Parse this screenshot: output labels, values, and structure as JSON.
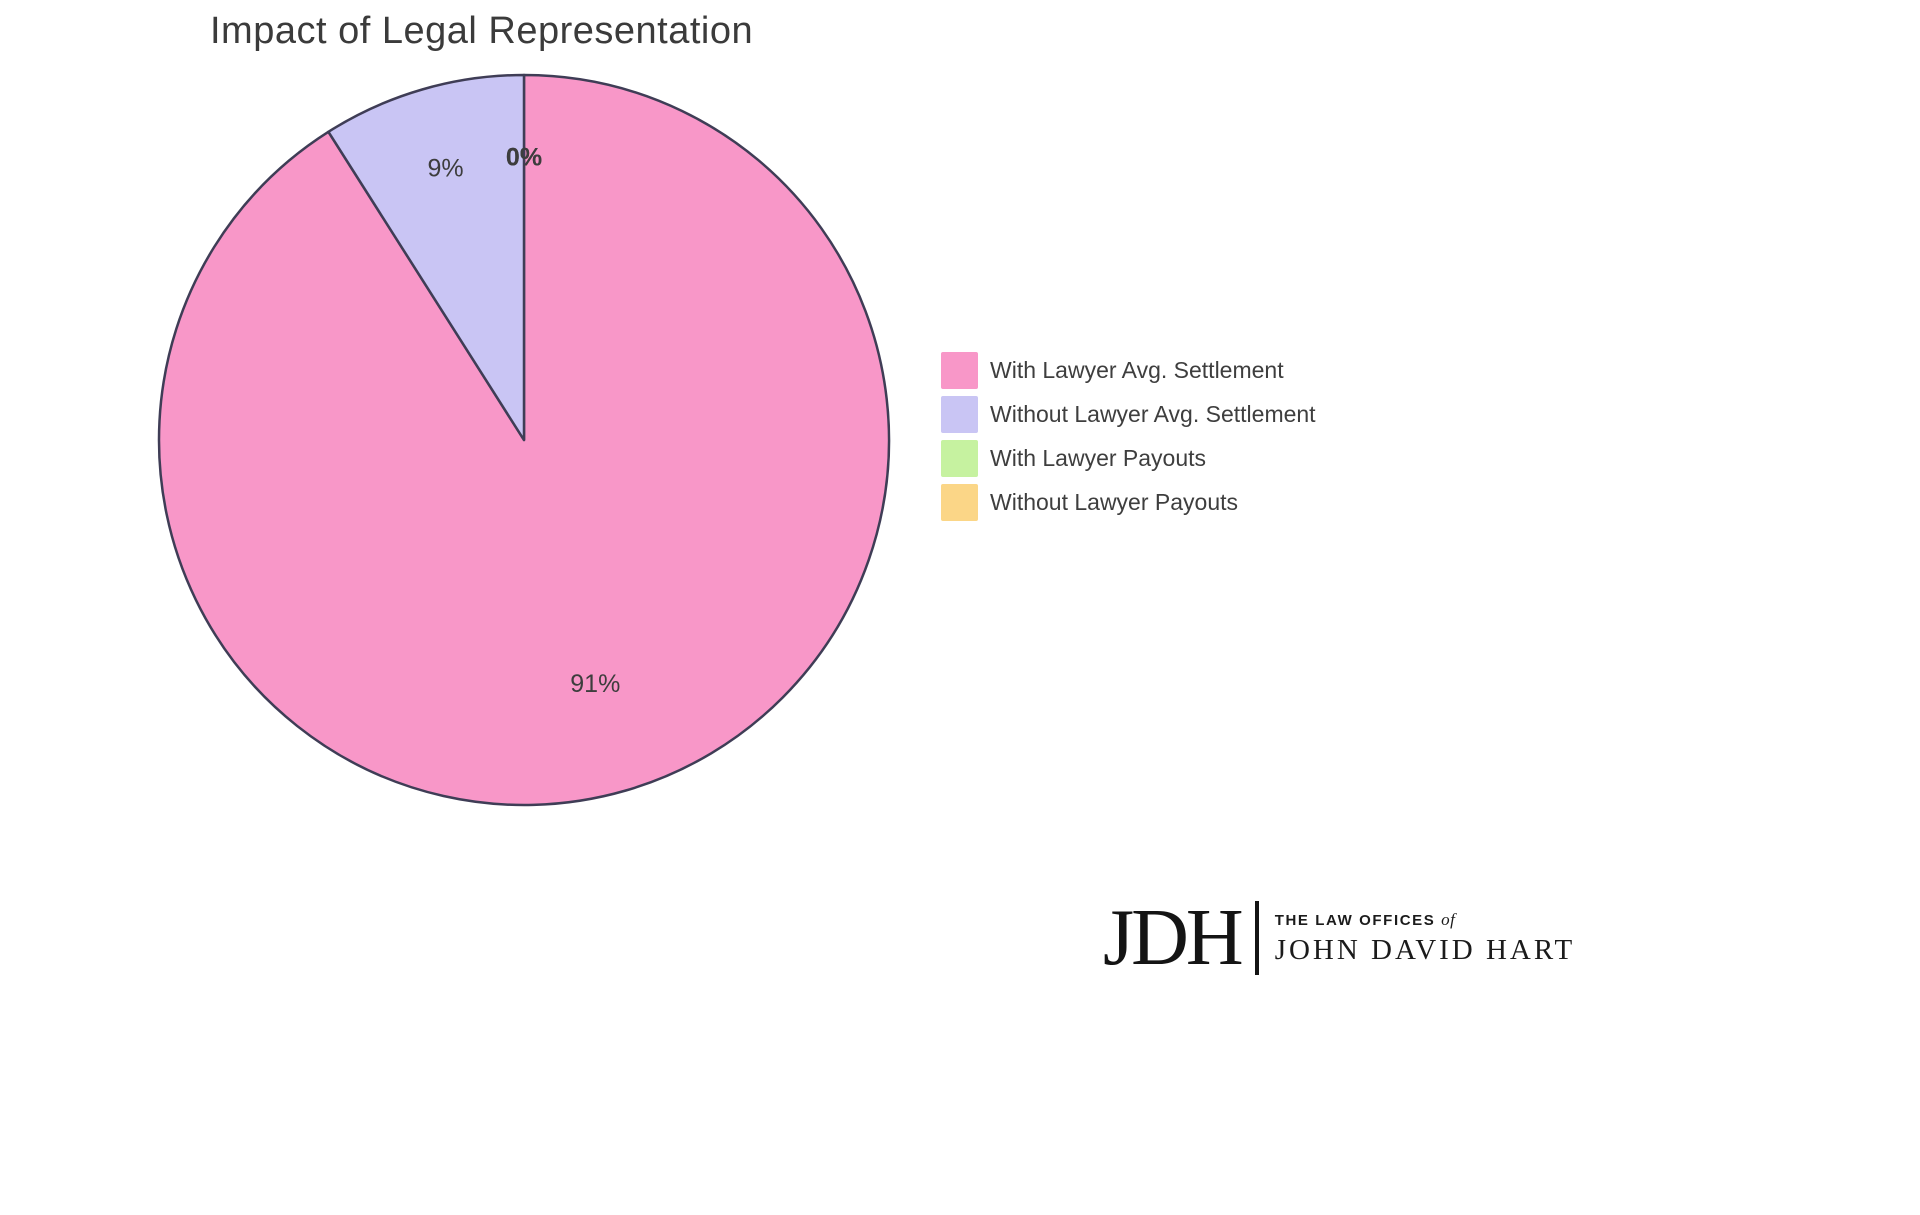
{
  "chart_data": {
    "type": "pie",
    "title": "Impact of Legal Representation",
    "legend_position": "right",
    "direction": "clockwise",
    "start_angle_deg": 0,
    "stroke_color": "#3F3D56",
    "label_color": "#3d3d3d",
    "slices": [
      {
        "label": "With Lawyer Avg. Settlement",
        "pct": 91,
        "text": "91%",
        "color": "#F897C8"
      },
      {
        "label": "Without Lawyer Avg. Settlement",
        "pct": 9,
        "text": "9%",
        "color": "#C9C5F4"
      },
      {
        "label": "With Lawyer Payouts",
        "pct": 0,
        "text": "0%",
        "color": "#C6F2A0"
      },
      {
        "label": "Without Lawyer Payouts",
        "pct": 0,
        "text": "0%",
        "color": "#FBD687"
      }
    ]
  },
  "logo": {
    "monogram": "JDH",
    "offices": "THE LAW OFFICES",
    "of": "of",
    "name": "JOHN DAVID HART"
  }
}
